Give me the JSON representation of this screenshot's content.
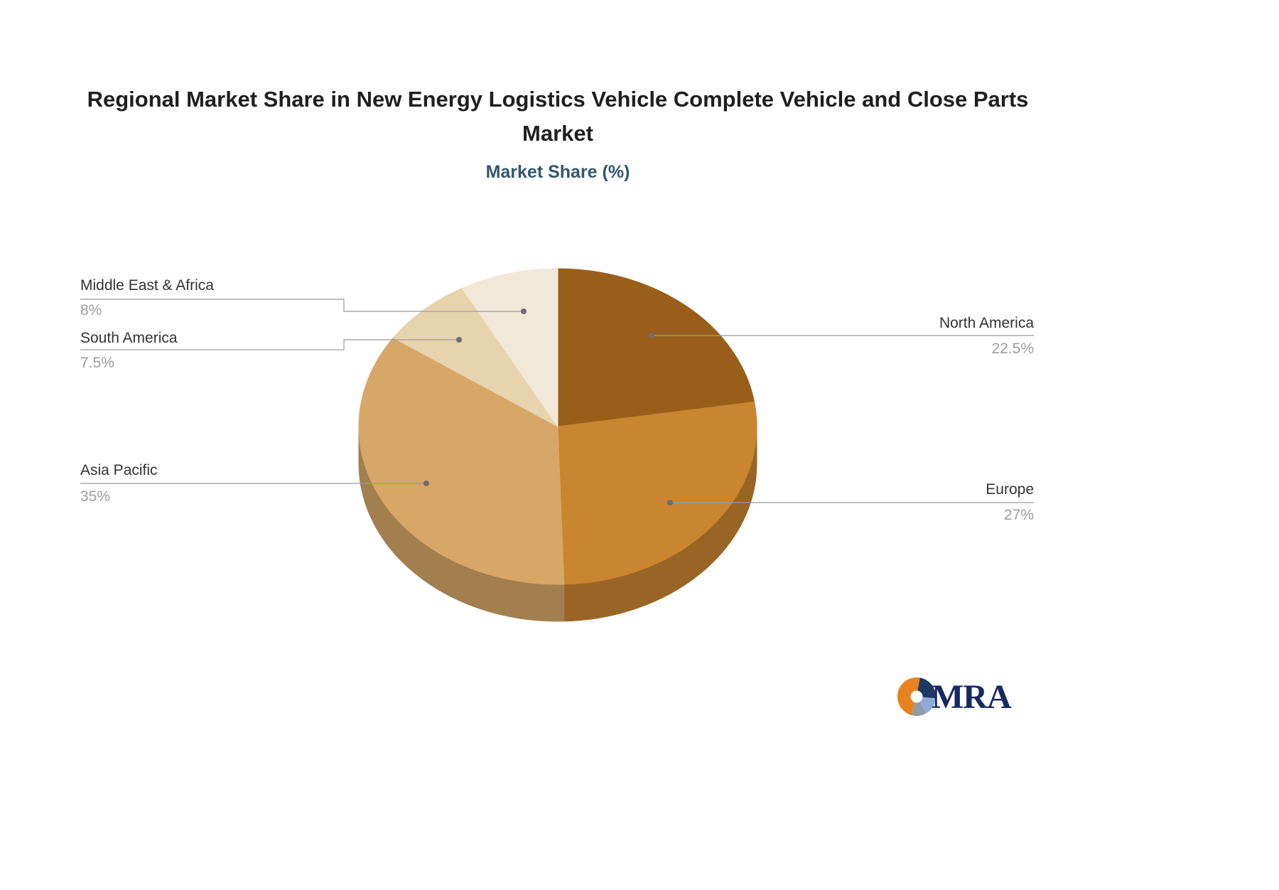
{
  "chart_data": {
    "type": "pie",
    "title": "Regional Market Share in New Energy Logistics Vehicle Complete Vehicle and Close Parts Market",
    "subtitle": "Market Share (%)",
    "unit": "%",
    "direction": "clockwise",
    "start_angle_deg": 0,
    "effect": "3d",
    "legend_position": "callouts",
    "slices": [
      {
        "label": "North America",
        "value": 22.5,
        "display": "22.5%",
        "color": "#9A5E1B"
      },
      {
        "label": "Europe",
        "value": 27,
        "display": "27%",
        "color": "#C98530"
      },
      {
        "label": "Asia Pacific",
        "value": 35,
        "display": "35%",
        "color": "#D7A768"
      },
      {
        "label": "South America",
        "value": 7.5,
        "display": "7.5%",
        "color": "#E7D3AE"
      },
      {
        "label": "Middle East & Africa",
        "value": 8,
        "display": "8%",
        "color": "#F2E8D8"
      }
    ]
  },
  "logo": {
    "text": "MRA",
    "colors": {
      "orange": "#E8821E",
      "navy": "#203864",
      "light_blue": "#8EAADB",
      "gray": "#8E9BA8"
    }
  }
}
